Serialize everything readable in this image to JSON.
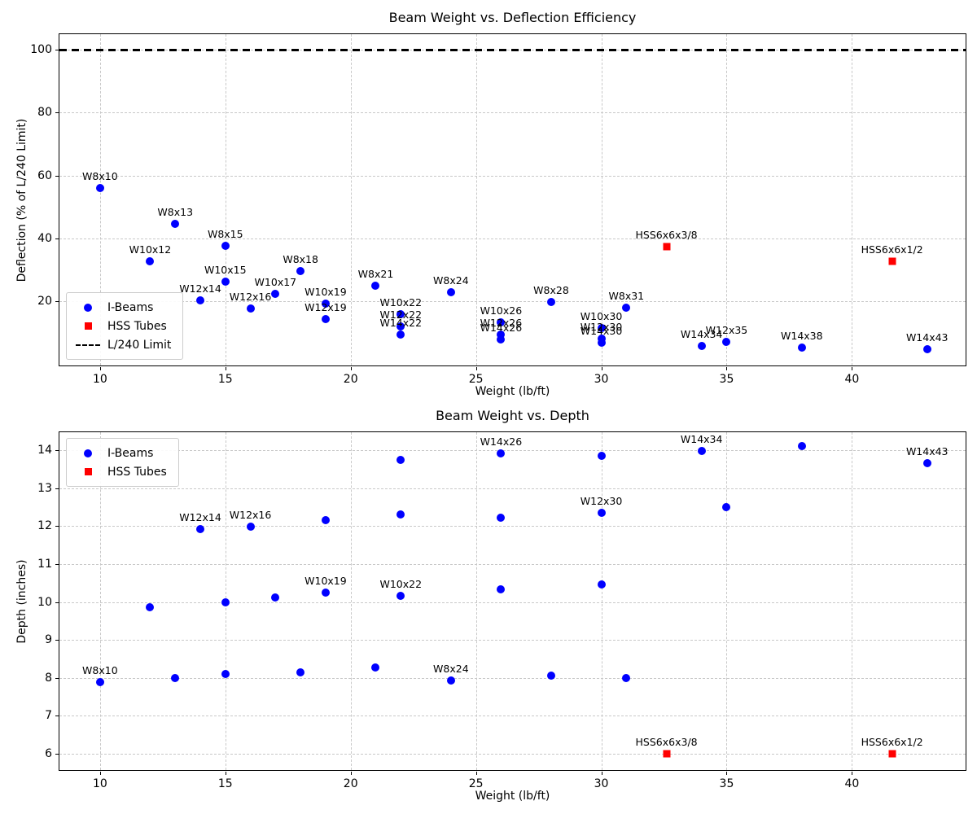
{
  "colors": {
    "i_beams": "#0000ff",
    "hss_tubes": "#ff0000",
    "reference_line": "#000000",
    "grid": "#c8c8c8",
    "background": "#ffffff"
  },
  "chart_data": [
    {
      "type": "scatter",
      "title": "Beam Weight vs. Deflection Efficiency",
      "xlabel": "Weight (lb/ft)",
      "ylabel": "Deflection (% of L/240 Limit)",
      "xlim": [
        8.38,
        44.6
      ],
      "ylim": [
        -1,
        105
      ],
      "xticks": [
        10,
        15,
        20,
        25,
        30,
        35,
        40
      ],
      "yticks": [
        20,
        40,
        60,
        80,
        100
      ],
      "grid": true,
      "ref_line": {
        "y": 100,
        "label": "L/240 Limit",
        "style": "dashed",
        "color": "#000000"
      },
      "legend": {
        "location": "lower left",
        "items": [
          {
            "label": "I-Beams",
            "marker": "circle",
            "color": "#0000ff"
          },
          {
            "label": "HSS Tubes",
            "marker": "square",
            "color": "#ff0000"
          },
          {
            "label": "L/240 Limit",
            "marker": "dashed-line",
            "color": "#000000"
          }
        ]
      },
      "series": [
        {
          "name": "I-Beams",
          "marker": "circle",
          "color": "#0000ff",
          "points": [
            {
              "label": "W8x10",
              "x": 10,
              "y": 56.0,
              "annotated": true
            },
            {
              "label": "W8x13",
              "x": 13,
              "y": 44.6,
              "annotated": true
            },
            {
              "label": "W8x15",
              "x": 15,
              "y": 37.6,
              "annotated": true
            },
            {
              "label": "W8x18",
              "x": 18,
              "y": 29.7,
              "annotated": true
            },
            {
              "label": "W8x21",
              "x": 21,
              "y": 24.8,
              "annotated": true
            },
            {
              "label": "W8x24",
              "x": 24,
              "y": 22.9,
              "annotated": true
            },
            {
              "label": "W8x28",
              "x": 28,
              "y": 19.8,
              "annotated": true
            },
            {
              "label": "W8x31",
              "x": 31,
              "y": 17.8,
              "annotated": true
            },
            {
              "label": "W10x12",
              "x": 12,
              "y": 32.8,
              "annotated": true
            },
            {
              "label": "W10x15",
              "x": 15,
              "y": 26.2,
              "annotated": true
            },
            {
              "label": "W10x17",
              "x": 17,
              "y": 22.3,
              "annotated": true
            },
            {
              "label": "W10x19",
              "x": 19,
              "y": 19.2,
              "annotated": true
            },
            {
              "label": "W10x22",
              "x": 22,
              "y": 15.9,
              "annotated": true
            },
            {
              "label": "W10x26",
              "x": 26,
              "y": 13.3,
              "annotated": true
            },
            {
              "label": "W10x30",
              "x": 30,
              "y": 11.5,
              "annotated": true
            },
            {
              "label": "W12x14",
              "x": 14,
              "y": 20.2,
              "annotated": true
            },
            {
              "label": "W12x16",
              "x": 16,
              "y": 17.7,
              "annotated": true
            },
            {
              "label": "W12x19",
              "x": 19,
              "y": 14.2,
              "annotated": true
            },
            {
              "label": "W12x22",
              "x": 22,
              "y": 12.0,
              "annotated": true
            },
            {
              "label": "W12x26",
              "x": 26,
              "y": 9.4,
              "annotated": true
            },
            {
              "label": "W12x30",
              "x": 30,
              "y": 8.2,
              "annotated": true
            },
            {
              "label": "W12x35",
              "x": 35,
              "y": 7.0,
              "annotated": true
            },
            {
              "label": "W14x22",
              "x": 22,
              "y": 9.4,
              "annotated": true
            },
            {
              "label": "W14x26",
              "x": 26,
              "y": 7.8,
              "annotated": true
            },
            {
              "label": "W14x30",
              "x": 30,
              "y": 6.7,
              "annotated": true
            },
            {
              "label": "W14x34",
              "x": 34,
              "y": 5.8,
              "annotated": true
            },
            {
              "label": "W14x38",
              "x": 38,
              "y": 5.3,
              "annotated": true
            },
            {
              "label": "W14x43",
              "x": 43,
              "y": 4.8,
              "annotated": true
            }
          ]
        },
        {
          "name": "HSS Tubes",
          "marker": "square",
          "color": "#ff0000",
          "points": [
            {
              "label": "HSS6x6x3/8",
              "x": 32.6,
              "y": 37.3,
              "annotated": true
            },
            {
              "label": "HSS6x6x1/2",
              "x": 41.6,
              "y": 32.6,
              "annotated": true
            }
          ]
        }
      ]
    },
    {
      "type": "scatter",
      "title": "Beam Weight vs. Depth",
      "xlabel": "Weight (lb/ft)",
      "ylabel": "Depth (inches)",
      "xlim": [
        8.38,
        44.6
      ],
      "ylim": [
        5.53,
        14.47
      ],
      "xticks": [
        10,
        15,
        20,
        25,
        30,
        35,
        40
      ],
      "yticks": [
        6,
        7,
        8,
        9,
        10,
        11,
        12,
        13,
        14
      ],
      "grid": true,
      "legend": {
        "location": "upper left",
        "items": [
          {
            "label": "I-Beams",
            "marker": "circle",
            "color": "#0000ff"
          },
          {
            "label": "HSS Tubes",
            "marker": "square",
            "color": "#ff0000"
          }
        ]
      },
      "series": [
        {
          "name": "I-Beams",
          "marker": "circle",
          "color": "#0000ff",
          "points": [
            {
              "label": "W8x10",
              "x": 10,
              "y": 7.89,
              "annotated": true
            },
            {
              "label": "W8x13",
              "x": 13,
              "y": 7.99,
              "annotated": false
            },
            {
              "label": "W8x15",
              "x": 15,
              "y": 8.11,
              "annotated": false
            },
            {
              "label": "W8x18",
              "x": 18,
              "y": 8.14,
              "annotated": false
            },
            {
              "label": "W8x21",
              "x": 21,
              "y": 8.28,
              "annotated": false
            },
            {
              "label": "W8x24",
              "x": 24,
              "y": 7.93,
              "annotated": true
            },
            {
              "label": "W8x28",
              "x": 28,
              "y": 8.06,
              "annotated": false
            },
            {
              "label": "W8x31",
              "x": 31,
              "y": 8.0,
              "annotated": false
            },
            {
              "label": "W10x12",
              "x": 12,
              "y": 9.87,
              "annotated": false
            },
            {
              "label": "W10x15",
              "x": 15,
              "y": 9.99,
              "annotated": false
            },
            {
              "label": "W10x17",
              "x": 17,
              "y": 10.11,
              "annotated": false
            },
            {
              "label": "W10x19",
              "x": 19,
              "y": 10.24,
              "annotated": true
            },
            {
              "label": "W10x22",
              "x": 22,
              "y": 10.17,
              "annotated": true
            },
            {
              "label": "W10x26",
              "x": 26,
              "y": 10.33,
              "annotated": false
            },
            {
              "label": "W10x30",
              "x": 30,
              "y": 10.47,
              "annotated": false
            },
            {
              "label": "W12x14",
              "x": 14,
              "y": 11.91,
              "annotated": true
            },
            {
              "label": "W12x16",
              "x": 16,
              "y": 11.99,
              "annotated": true
            },
            {
              "label": "W12x19",
              "x": 19,
              "y": 12.16,
              "annotated": false
            },
            {
              "label": "W12x22",
              "x": 22,
              "y": 12.31,
              "annotated": false
            },
            {
              "label": "W12x26",
              "x": 26,
              "y": 12.22,
              "annotated": false
            },
            {
              "label": "W12x30",
              "x": 30,
              "y": 12.34,
              "annotated": true
            },
            {
              "label": "W12x35",
              "x": 35,
              "y": 12.5,
              "annotated": false
            },
            {
              "label": "W14x22",
              "x": 22,
              "y": 13.74,
              "annotated": false
            },
            {
              "label": "W14x26",
              "x": 26,
              "y": 13.91,
              "annotated": true
            },
            {
              "label": "W14x30",
              "x": 30,
              "y": 13.84,
              "annotated": false
            },
            {
              "label": "W14x34",
              "x": 34,
              "y": 13.98,
              "annotated": true
            },
            {
              "label": "W14x38",
              "x": 38,
              "y": 14.1,
              "annotated": false
            },
            {
              "label": "W14x43",
              "x": 43,
              "y": 13.66,
              "annotated": true
            }
          ]
        },
        {
          "name": "HSS Tubes",
          "marker": "square",
          "color": "#ff0000",
          "points": [
            {
              "label": "HSS6x6x3/8",
              "x": 32.6,
              "y": 6.0,
              "annotated": true
            },
            {
              "label": "HSS6x6x1/2",
              "x": 41.6,
              "y": 6.0,
              "annotated": true
            }
          ]
        }
      ]
    }
  ]
}
